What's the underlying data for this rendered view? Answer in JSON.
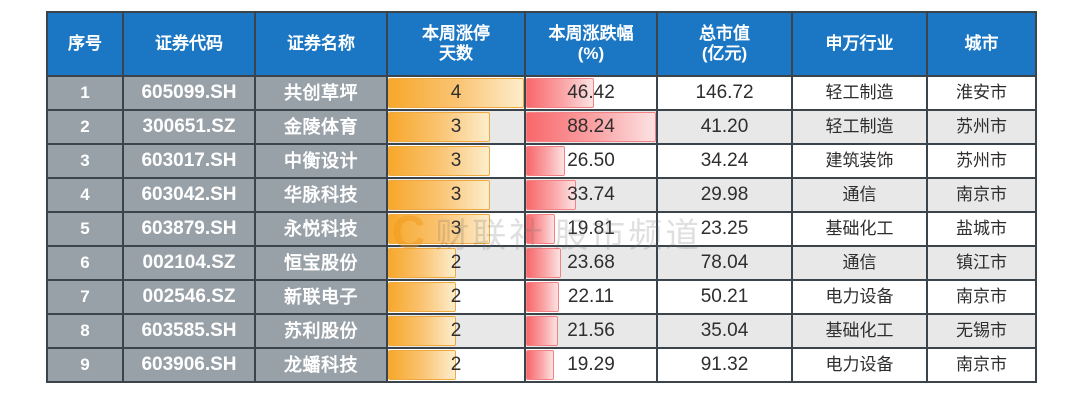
{
  "table": {
    "columns": [
      {
        "label": "序号",
        "sub": ""
      },
      {
        "label": "证券代码",
        "sub": ""
      },
      {
        "label": "证券名称",
        "sub": ""
      },
      {
        "label": "本周涨停",
        "sub": "天数"
      },
      {
        "label": "本周涨跌幅",
        "sub": "(%)"
      },
      {
        "label": "总市值",
        "sub": "(亿元)"
      },
      {
        "label": "申万行业",
        "sub": ""
      },
      {
        "label": "城市",
        "sub": ""
      }
    ],
    "bar_scale": {
      "limit_days_max": 4,
      "chg_pct_max": 88.24
    },
    "rows": [
      {
        "index": "1",
        "code": "605099.SH",
        "name": "共创草坪",
        "limit_days": "4",
        "chg_pct": "46.42",
        "mkt_cap": "146.72",
        "industry": "轻工制造",
        "city": "淮安市"
      },
      {
        "index": "2",
        "code": "300651.SZ",
        "name": "金陵体育",
        "limit_days": "3",
        "chg_pct": "88.24",
        "mkt_cap": "41.20",
        "industry": "轻工制造",
        "city": "苏州市"
      },
      {
        "index": "3",
        "code": "603017.SH",
        "name": "中衡设计",
        "limit_days": "3",
        "chg_pct": "26.50",
        "mkt_cap": "34.24",
        "industry": "建筑装饰",
        "city": "苏州市"
      },
      {
        "index": "4",
        "code": "603042.SH",
        "name": "华脉科技",
        "limit_days": "3",
        "chg_pct": "33.74",
        "mkt_cap": "29.98",
        "industry": "通信",
        "city": "南京市"
      },
      {
        "index": "5",
        "code": "603879.SH",
        "name": "永悦科技",
        "limit_days": "3",
        "chg_pct": "19.81",
        "mkt_cap": "23.25",
        "industry": "基础化工",
        "city": "盐城市"
      },
      {
        "index": "6",
        "code": "002104.SZ",
        "name": "恒宝股份",
        "limit_days": "2",
        "chg_pct": "23.68",
        "mkt_cap": "78.04",
        "industry": "通信",
        "city": "镇江市"
      },
      {
        "index": "7",
        "code": "002546.SZ",
        "name": "新联电子",
        "limit_days": "2",
        "chg_pct": "22.11",
        "mkt_cap": "50.21",
        "industry": "电力设备",
        "city": "南京市"
      },
      {
        "index": "8",
        "code": "603585.SH",
        "name": "苏利股份",
        "limit_days": "2",
        "chg_pct": "21.56",
        "mkt_cap": "35.04",
        "industry": "基础化工",
        "city": "无锡市"
      },
      {
        "index": "9",
        "code": "603906.SH",
        "name": "龙蟠科技",
        "limit_days": "2",
        "chg_pct": "19.29",
        "mkt_cap": "91.32",
        "industry": "电力设备",
        "city": "南京市"
      }
    ]
  },
  "watermark": {
    "logo": "C",
    "text1": "财联社",
    "text2": "股市频道"
  },
  "colors": {
    "header_bg": "#1B77C4",
    "gray_cell_bg": "#99A1A8",
    "even_row_bg": "#E8E8E8",
    "odd_row_bg": "#FFFFFF",
    "grid_border": "#3B434B",
    "bar_orange": "#F9AC38",
    "bar_red": "#F87376"
  },
  "chart_data": {
    "type": "table",
    "columns": [
      "序号",
      "证券代码",
      "证券名称",
      "本周涨停天数",
      "本周涨跌幅(%)",
      "总市值(亿元)",
      "申万行业",
      "城市"
    ],
    "rows": [
      [
        "1",
        "605099.SH",
        "共创草坪",
        4,
        46.42,
        146.72,
        "轻工制造",
        "淮安市"
      ],
      [
        "2",
        "300651.SZ",
        "金陵体育",
        3,
        88.24,
        41.2,
        "轻工制造",
        "苏州市"
      ],
      [
        "3",
        "603017.SH",
        "中衡设计",
        3,
        26.5,
        34.24,
        "建筑装饰",
        "苏州市"
      ],
      [
        "4",
        "603042.SH",
        "华脉科技",
        3,
        33.74,
        29.98,
        "通信",
        "南京市"
      ],
      [
        "5",
        "603879.SH",
        "永悦科技",
        3,
        19.81,
        23.25,
        "基础化工",
        "盐城市"
      ],
      [
        "6",
        "002104.SZ",
        "恒宝股份",
        2,
        23.68,
        78.04,
        "通信",
        "镇江市"
      ],
      [
        "7",
        "002546.SZ",
        "新联电子",
        2,
        22.11,
        50.21,
        "电力设备",
        "南京市"
      ],
      [
        "8",
        "603585.SH",
        "苏利股份",
        2,
        21.56,
        35.04,
        "基础化工",
        "无锡市"
      ],
      [
        "9",
        "603906.SH",
        "龙蟠科技",
        2,
        19.29,
        91.32,
        "电力设备",
        "南京市"
      ]
    ],
    "data_bars": [
      {
        "column": "本周涨停天数",
        "color": "orange-gradient",
        "min": 0,
        "max": 4
      },
      {
        "column": "本周涨跌幅(%)",
        "color": "red-gradient",
        "min": 0,
        "max": 88.24
      }
    ],
    "legend_position": "none",
    "grid": true
  }
}
